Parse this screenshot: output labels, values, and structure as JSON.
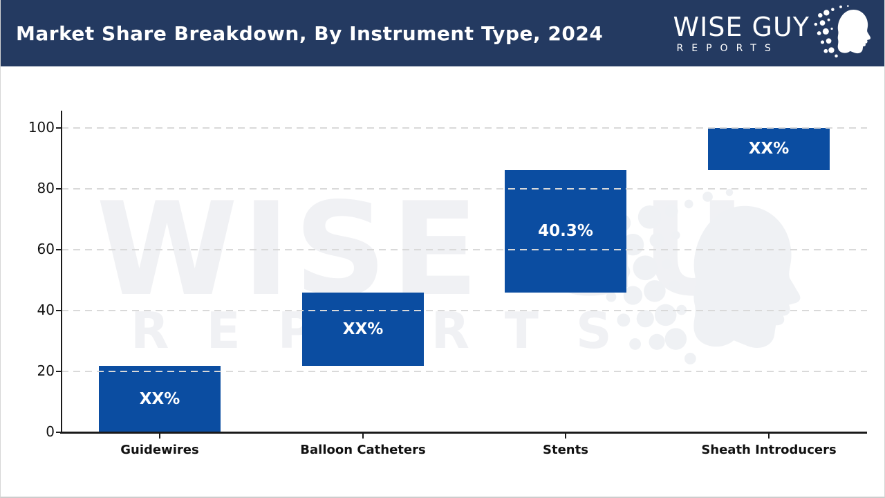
{
  "header": {
    "title": "Market Share Breakdown, By Instrument Type, 2024",
    "logo": {
      "line1": "WISE GUY",
      "line2": "REPORTS"
    }
  },
  "watermark": {
    "line1": "WISE GU",
    "line2": "REPORTS"
  },
  "chart_data": {
    "type": "bar",
    "subtype": "floating_segment_bars",
    "title": "Market Share Breakdown, By Instrument Type, 2024",
    "categories": [
      "Guidewires",
      "Balloon Catheters",
      "Stents",
      "Sheath Introducers"
    ],
    "segments": [
      {
        "category": "Guidewires",
        "from": 0,
        "to": 21.8,
        "label": "XX%"
      },
      {
        "category": "Balloon Catheters",
        "from": 21.8,
        "to": 45.9,
        "label": "XX%"
      },
      {
        "category": "Stents",
        "from": 45.9,
        "to": 86.2,
        "label": "40.3%"
      },
      {
        "category": "Sheath Introducers",
        "from": 86.2,
        "to": 100,
        "label": "XX%"
      }
    ],
    "xlabel": "",
    "ylabel": "",
    "yticks": [
      0,
      20,
      40,
      60,
      80,
      100
    ],
    "ylim": [
      0,
      105.7
    ],
    "grid": "horizontal dashed",
    "legend": "none",
    "bar_color": "#0B4DA1"
  },
  "colors": {
    "header_bg": "#243A61",
    "bar": "#0B4DA1",
    "gridline": "#D9D9D9",
    "axis": "#1A1A1A",
    "watermark": "#F0F1F4"
  }
}
